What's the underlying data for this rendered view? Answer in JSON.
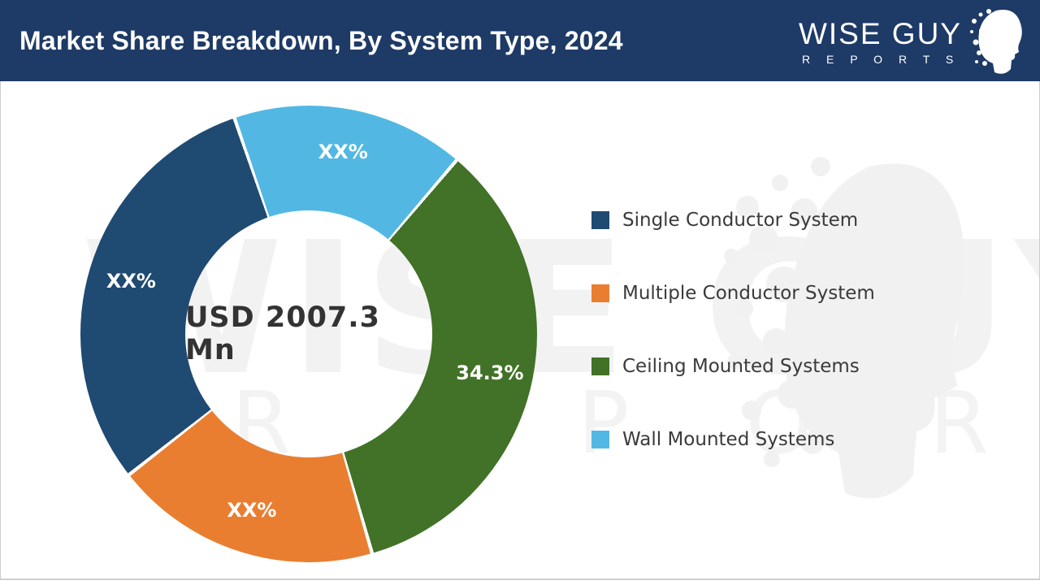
{
  "header": {
    "title": "Market Share Breakdown, By System Type, 2024",
    "bg_color": "#1e3a66",
    "logo": {
      "line1": "WISE GUY",
      "line2": "R E P O R T S"
    }
  },
  "watermark": {
    "line1": "WISE GUY",
    "line2": "R E P O R T S"
  },
  "chart_data": {
    "type": "pie",
    "donut": true,
    "title": "Market Share Breakdown, By System Type, 2024",
    "center_label": "USD 2007.3 Mn",
    "legend_position": "right",
    "start_angle_deg": -19,
    "draw_order": [
      3,
      2,
      1,
      0
    ],
    "segments": [
      {
        "name": "Single Conductor System",
        "display_label": "XX%",
        "value_pct": 30.3,
        "color": "#1f4a72"
      },
      {
        "name": "Multiple Conductor System",
        "display_label": "XX%",
        "value_pct": 18.9,
        "color": "#ea7e30"
      },
      {
        "name": "Ceiling Mounted Systems",
        "display_label": "34.3%",
        "value_pct": 34.3,
        "color": "#417227"
      },
      {
        "name": "Wall Mounted Systems",
        "display_label": "XX%",
        "value_pct": 16.5,
        "color": "#52b8e3"
      }
    ]
  }
}
